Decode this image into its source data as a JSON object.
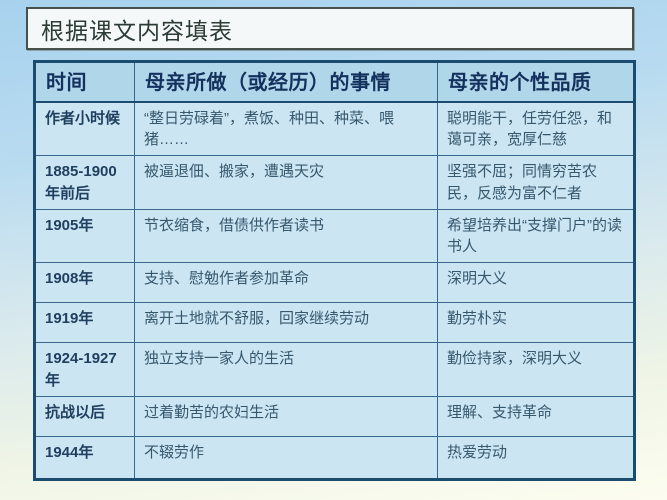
{
  "slide": {
    "title": "根据课文内容填表"
  },
  "table": {
    "headers": [
      "时间",
      "母亲所做（或经历）的事情",
      "母亲的个性品质"
    ],
    "rows": [
      {
        "time": "作者小时候",
        "event": "“整日劳碌着”，煮饭、种田、种菜、喂猪……",
        "quality": "聪明能干，任劳任怨，和蔼可亲，宽厚仁慈"
      },
      {
        "time": "1885-1900年前后",
        "event": "被逼退佃、搬家，遭遇天灾",
        "quality": "坚强不屈；同情穷苦农民，反感为富不仁者"
      },
      {
        "time": "1905年",
        "event": "节衣缩食，借债供作者读书",
        "quality": "希望培养出“支撑门户”的读书人"
      },
      {
        "time": "1908年",
        "event": "支持、慰勉作者参加革命",
        "quality": "深明大义"
      },
      {
        "time": "1919年",
        "event": "离开土地就不舒服，回家继续劳动",
        "quality": "勤劳朴实"
      },
      {
        "time": "1924-1927年",
        "event": "独立支持一家人的生活",
        "quality": "勤俭持家，深明大义"
      },
      {
        "time": "抗战以后",
        "event": "过着勤苦的农妇生活",
        "quality": "理解、支持革命"
      },
      {
        "time": "1944年",
        "event": "不辍劳作",
        "quality": "热爱劳动"
      }
    ],
    "colors": {
      "header_bg": "#b0d6ea",
      "cell_bg": "#cce5f2",
      "table_border": "#1c4b70",
      "header_text": "#14315d",
      "body_text": "#36586d",
      "title_text": "#2c3b34",
      "page_bg_top": "#a7d2ee",
      "page_bg_bottom": "#fcfdf0"
    }
  }
}
